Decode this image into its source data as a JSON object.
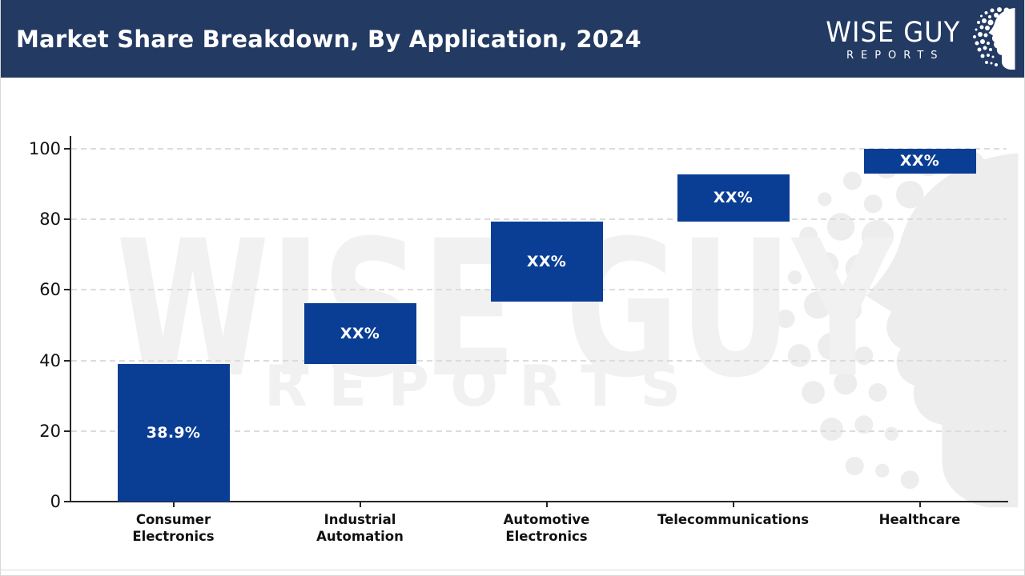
{
  "page": {
    "background": "#ffffff",
    "border_color": "#d9d9d9"
  },
  "header": {
    "title": "Market Share Breakdown, By Application, 2024",
    "bg_color": "#233a63",
    "logo": {
      "line1": "WISE GUY",
      "line2": "REPORTS"
    }
  },
  "watermark": {
    "line1": "WISE GUY",
    "line2": "REPORTS"
  },
  "chart_data": {
    "type": "bar",
    "subtype": "waterfall",
    "title": "Market Share Breakdown, By Application, 2024",
    "categories": [
      "Consumer\nElectronics",
      "Industrial\nAutomation",
      "Automotive\nElectronics",
      "Telecommunications",
      "Healthcare"
    ],
    "segments": [
      {
        "category": "Consumer Electronics",
        "start": 0,
        "end": 38.9,
        "label": "38.9%"
      },
      {
        "category": "Industrial Automation",
        "start": 38.9,
        "end": 56.3,
        "label": "XX%"
      },
      {
        "category": "Automotive Electronics",
        "start": 56.6,
        "end": 79.4,
        "label": "XX%"
      },
      {
        "category": "Telecommunications",
        "start": 79.4,
        "end": 92.8,
        "label": "XX%"
      },
      {
        "category": "Healthcare",
        "start": 93.0,
        "end": 100.0,
        "label": "XX%"
      }
    ],
    "ylim": [
      0,
      100
    ],
    "yticks": [
      0,
      20,
      40,
      60,
      80,
      100
    ],
    "grid": true,
    "legend": false,
    "bar_color": "#0a3e94",
    "bar_label_color": "#ffffff",
    "axis_color": "#262626",
    "grid_color": "#dcdcdc",
    "tick_label_color": "#111111"
  }
}
